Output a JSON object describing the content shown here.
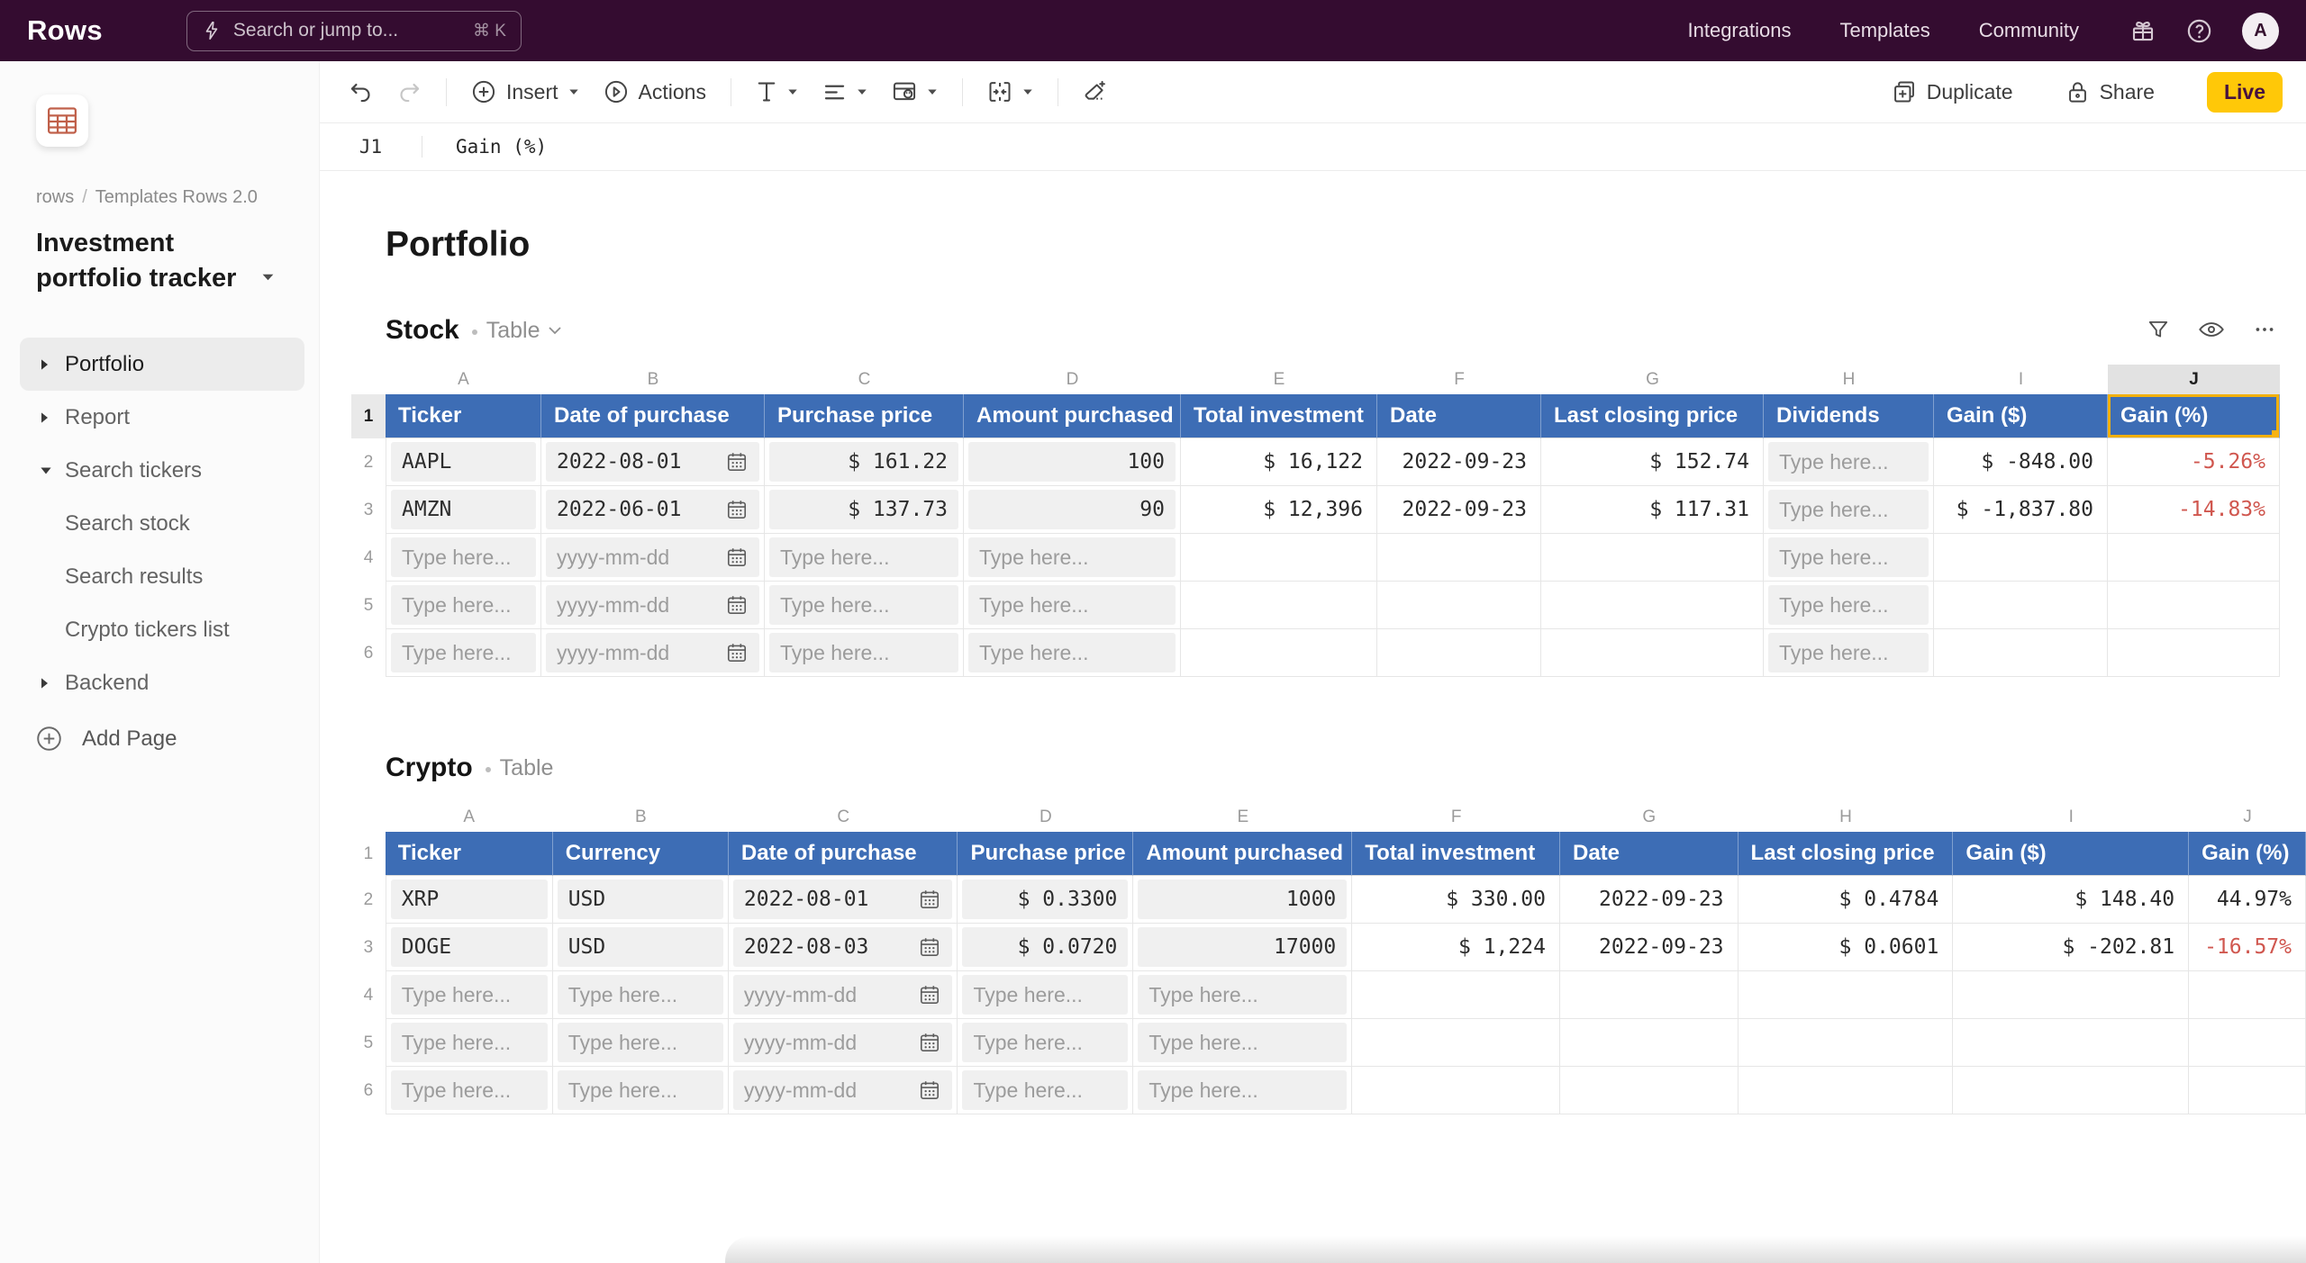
{
  "topbar": {
    "logo": "Rows",
    "search_placeholder": "Search or jump to...",
    "search_shortcut": "⌘ K",
    "nav": [
      "Integrations",
      "Templates",
      "Community"
    ],
    "avatar_initial": "A"
  },
  "toolbar": {
    "insert_label": "Insert",
    "actions_label": "Actions",
    "duplicate_label": "Duplicate",
    "share_label": "Share",
    "live_label": "Live"
  },
  "formula_bar": {
    "cell_ref": "J1",
    "value": "Gain (%)"
  },
  "sidebar": {
    "breadcrumb": [
      "rows",
      "Templates Rows 2.0"
    ],
    "workspace_title": "Investment portfolio tracker",
    "items": [
      {
        "label": "Portfolio",
        "arrow": "right",
        "active": true
      },
      {
        "label": "Report",
        "arrow": "right"
      },
      {
        "label": "Search tickers",
        "arrow": "down"
      },
      {
        "label": "Search stock",
        "sub": true
      },
      {
        "label": "Search results",
        "sub": true
      },
      {
        "label": "Crypto tickers list",
        "sub": true
      },
      {
        "label": "Backend",
        "arrow": "right"
      }
    ],
    "add_page_label": "Add Page"
  },
  "page": {
    "title": "Portfolio"
  },
  "colors": {
    "topbar_bg": "#340c30",
    "header_blue": "#3d6db5",
    "live_yellow": "#ffc808",
    "selection_gold": "#f1b00d",
    "negative_red": "#d0574f"
  },
  "tables": [
    {
      "id": "stock",
      "title": "Stock",
      "badge": "Table",
      "letters": [
        "A",
        "B",
        "C",
        "D",
        "E",
        "F",
        "G",
        "H",
        "I",
        "J"
      ],
      "selected_letter": "J",
      "selected_header_index": 9,
      "header_row_num": "1",
      "header_row_selected": true,
      "headers": [
        "Ticker",
        "Date of purchase",
        "Purchase price",
        "Amount purchased",
        "Total investment",
        "Date",
        "Last closing price",
        "Dividends",
        "Gain ($)",
        "Gain (%)"
      ],
      "rows": [
        {
          "n": "2",
          "cells": [
            {
              "v": "AAPL",
              "k": "chip"
            },
            {
              "v": "2022-08-01",
              "k": "chip-date"
            },
            {
              "v": "$ 161.22",
              "k": "chip-num"
            },
            {
              "v": "100",
              "k": "chip-num"
            },
            {
              "v": "$ 16,122",
              "k": "num"
            },
            {
              "v": "2022-09-23",
              "k": "num"
            },
            {
              "v": "$ 152.74",
              "k": "num"
            },
            {
              "v": "Type here...",
              "k": "chip-ph"
            },
            {
              "v": "$ -848.00",
              "k": "num"
            },
            {
              "v": "-5.26%",
              "k": "num-neg"
            }
          ]
        },
        {
          "n": "3",
          "cells": [
            {
              "v": "AMZN",
              "k": "chip"
            },
            {
              "v": "2022-06-01",
              "k": "chip-date"
            },
            {
              "v": "$ 137.73",
              "k": "chip-num"
            },
            {
              "v": "90",
              "k": "chip-num"
            },
            {
              "v": "$ 12,396",
              "k": "num"
            },
            {
              "v": "2022-09-23",
              "k": "num"
            },
            {
              "v": "$ 117.31",
              "k": "num"
            },
            {
              "v": "Type here...",
              "k": "chip-ph"
            },
            {
              "v": "$ -1,837.80",
              "k": "num"
            },
            {
              "v": "-14.83%",
              "k": "num-neg"
            }
          ]
        },
        {
          "n": "4",
          "cells": [
            {
              "v": "Type here...",
              "k": "chip-ph"
            },
            {
              "v": "yyyy-mm-dd",
              "k": "chip-date-ph"
            },
            {
              "v": "Type here...",
              "k": "chip-ph"
            },
            {
              "v": "Type here...",
              "k": "chip-ph"
            },
            {
              "k": "empty"
            },
            {
              "k": "empty"
            },
            {
              "k": "empty"
            },
            {
              "v": "Type here...",
              "k": "chip-ph"
            },
            {
              "k": "empty"
            },
            {
              "k": "empty"
            }
          ]
        },
        {
          "n": "5",
          "cells": [
            {
              "v": "Type here...",
              "k": "chip-ph"
            },
            {
              "v": "yyyy-mm-dd",
              "k": "chip-date-ph"
            },
            {
              "v": "Type here...",
              "k": "chip-ph"
            },
            {
              "v": "Type here...",
              "k": "chip-ph"
            },
            {
              "k": "empty"
            },
            {
              "k": "empty"
            },
            {
              "k": "empty"
            },
            {
              "v": "Type here...",
              "k": "chip-ph"
            },
            {
              "k": "empty"
            },
            {
              "k": "empty"
            }
          ]
        },
        {
          "n": "6",
          "cells": [
            {
              "v": "Type here...",
              "k": "chip-ph"
            },
            {
              "v": "yyyy-mm-dd",
              "k": "chip-date-ph"
            },
            {
              "v": "Type here...",
              "k": "chip-ph"
            },
            {
              "v": "Type here...",
              "k": "chip-ph"
            },
            {
              "k": "empty"
            },
            {
              "k": "empty"
            },
            {
              "k": "empty"
            },
            {
              "v": "Type here...",
              "k": "chip-ph"
            },
            {
              "k": "empty"
            },
            {
              "k": "empty"
            }
          ]
        }
      ]
    },
    {
      "id": "crypto",
      "title": "Crypto",
      "badge": "Table",
      "letters": [
        "A",
        "B",
        "C",
        "D",
        "E",
        "F",
        "G",
        "H",
        "I",
        "J"
      ],
      "selected_letter": "",
      "selected_header_index": -1,
      "header_row_num": "1",
      "header_row_selected": false,
      "headers": [
        "Ticker",
        "Currency",
        "Date of purchase",
        "Purchase price",
        "Amount purchased",
        "Total investment",
        "Date",
        "Last closing price",
        "Gain ($)",
        "Gain (%)"
      ],
      "rows": [
        {
          "n": "2",
          "cells": [
            {
              "v": "XRP",
              "k": "chip"
            },
            {
              "v": "USD",
              "k": "chip"
            },
            {
              "v": "2022-08-01",
              "k": "chip-date"
            },
            {
              "v": "$ 0.3300",
              "k": "chip-num"
            },
            {
              "v": "1000",
              "k": "chip-num"
            },
            {
              "v": "$ 330.00",
              "k": "num"
            },
            {
              "v": "2022-09-23",
              "k": "num"
            },
            {
              "v": "$ 0.4784",
              "k": "num"
            },
            {
              "v": "$ 148.40",
              "k": "num"
            },
            {
              "v": "44.97%",
              "k": "num"
            }
          ]
        },
        {
          "n": "3",
          "cells": [
            {
              "v": "DOGE",
              "k": "chip"
            },
            {
              "v": "USD",
              "k": "chip"
            },
            {
              "v": "2022-08-03",
              "k": "chip-date"
            },
            {
              "v": "$ 0.0720",
              "k": "chip-num"
            },
            {
              "v": "17000",
              "k": "chip-num"
            },
            {
              "v": "$ 1,224",
              "k": "num"
            },
            {
              "v": "2022-09-23",
              "k": "num"
            },
            {
              "v": "$ 0.0601",
              "k": "num"
            },
            {
              "v": "$ -202.81",
              "k": "num"
            },
            {
              "v": "-16.57%",
              "k": "num-neg"
            }
          ]
        },
        {
          "n": "4",
          "cells": [
            {
              "v": "Type here...",
              "k": "chip-ph"
            },
            {
              "v": "Type here...",
              "k": "chip-ph"
            },
            {
              "v": "yyyy-mm-dd",
              "k": "chip-date-ph"
            },
            {
              "v": "Type here...",
              "k": "chip-ph"
            },
            {
              "v": "Type here...",
              "k": "chip-ph"
            },
            {
              "k": "empty"
            },
            {
              "k": "empty"
            },
            {
              "k": "empty"
            },
            {
              "k": "empty"
            },
            {
              "k": "empty"
            }
          ]
        },
        {
          "n": "5",
          "cells": [
            {
              "v": "Type here...",
              "k": "chip-ph"
            },
            {
              "v": "Type here...",
              "k": "chip-ph"
            },
            {
              "v": "yyyy-mm-dd",
              "k": "chip-date-ph"
            },
            {
              "v": "Type here...",
              "k": "chip-ph"
            },
            {
              "v": "Type here...",
              "k": "chip-ph"
            },
            {
              "k": "empty"
            },
            {
              "k": "empty"
            },
            {
              "k": "empty"
            },
            {
              "k": "empty"
            },
            {
              "k": "empty"
            }
          ]
        },
        {
          "n": "6",
          "cells": [
            {
              "v": "Type here...",
              "k": "chip-ph"
            },
            {
              "v": "Type here...",
              "k": "chip-ph"
            },
            {
              "v": "yyyy-mm-dd",
              "k": "chip-date-ph"
            },
            {
              "v": "Type here...",
              "k": "chip-ph"
            },
            {
              "v": "Type here...",
              "k": "chip-ph"
            },
            {
              "k": "empty"
            },
            {
              "k": "empty"
            },
            {
              "k": "empty"
            },
            {
              "k": "empty"
            },
            {
              "k": "empty"
            }
          ]
        }
      ]
    }
  ]
}
